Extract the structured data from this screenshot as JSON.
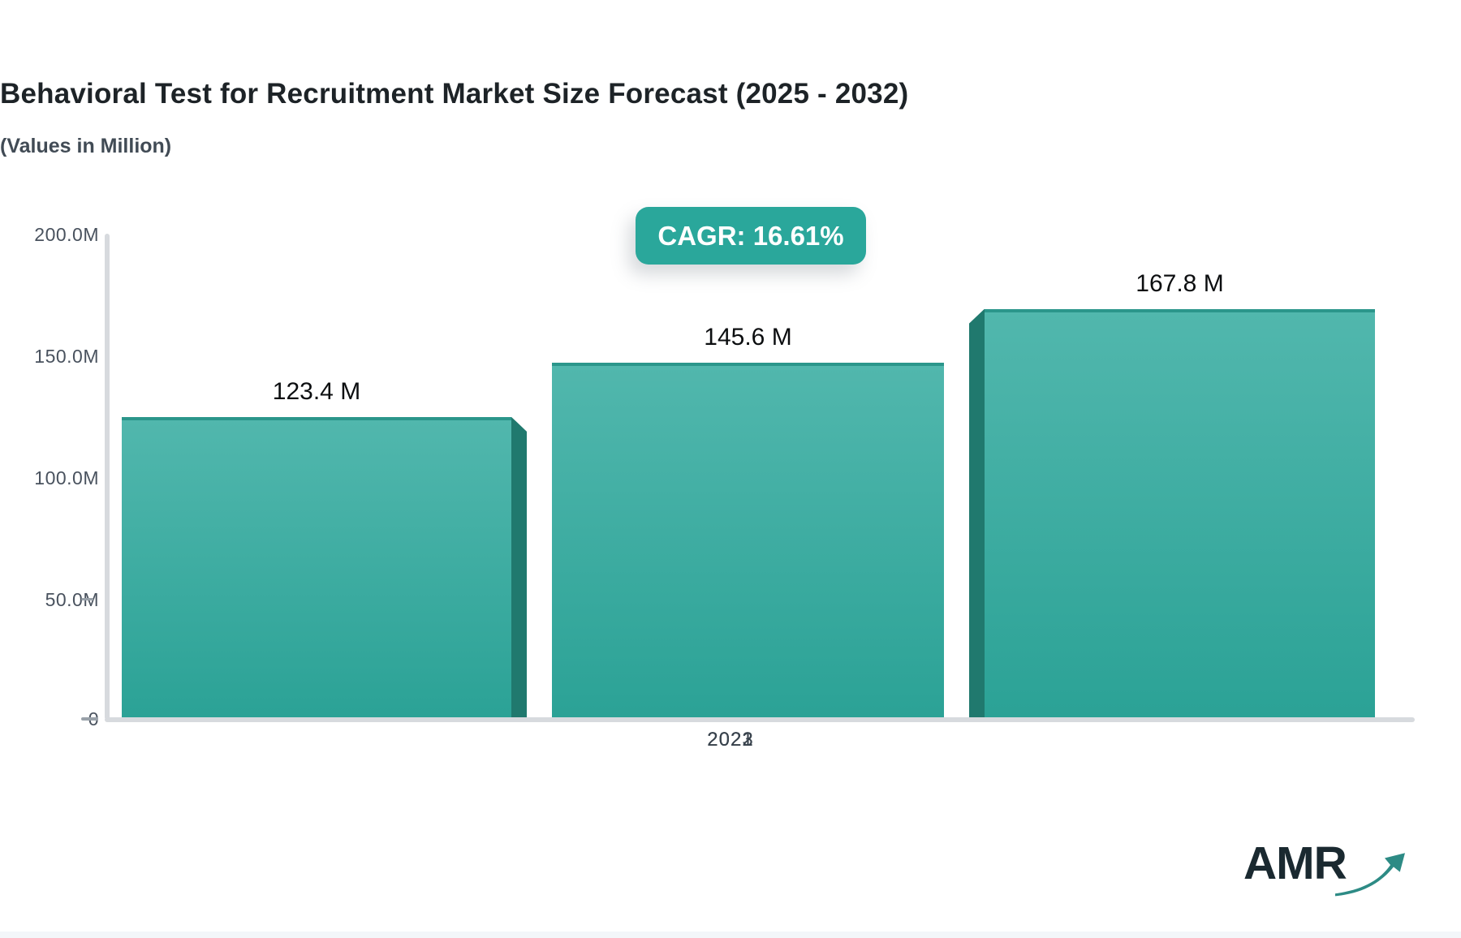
{
  "header": {
    "title": "Behavioral Test for Recruitment Market Size Forecast (2025 - 2032)",
    "subtitle": "(Values in Million)",
    "cagr_label": "CAGR: 16.61%"
  },
  "chart_data": {
    "type": "bar",
    "title": "Behavioral Test for Recruitment Market Size Forecast (2025 - 2032)",
    "subtitle": "(Values in Million)",
    "categories": [
      "2021",
      "2022",
      "2023"
    ],
    "values": [
      123.4,
      145.6,
      167.8
    ],
    "value_labels": [
      "123.4 M",
      "145.6 M",
      "167.8 M"
    ],
    "cagr_percent": 16.61,
    "xlabel": "",
    "ylabel": "",
    "ylim": [
      0,
      200
    ],
    "yticks": [
      "200.0M",
      "150.0M",
      "100.0M",
      "50.0M",
      "0"
    ],
    "grid": false,
    "legend": false,
    "colors": {
      "bar_gradient_top": "#51b7ad",
      "bar_gradient_bottom": "#2ba296",
      "bar_top_border": "#2b968b",
      "bar_side_face": "#20796e",
      "badge_background": "#2aa79b",
      "axis_line": "#d7dade"
    }
  },
  "logo": {
    "text": "AMR",
    "icon": "growth-arrow-icon",
    "text_color": "#1a2930",
    "arrow_color": "#2d8b85"
  }
}
